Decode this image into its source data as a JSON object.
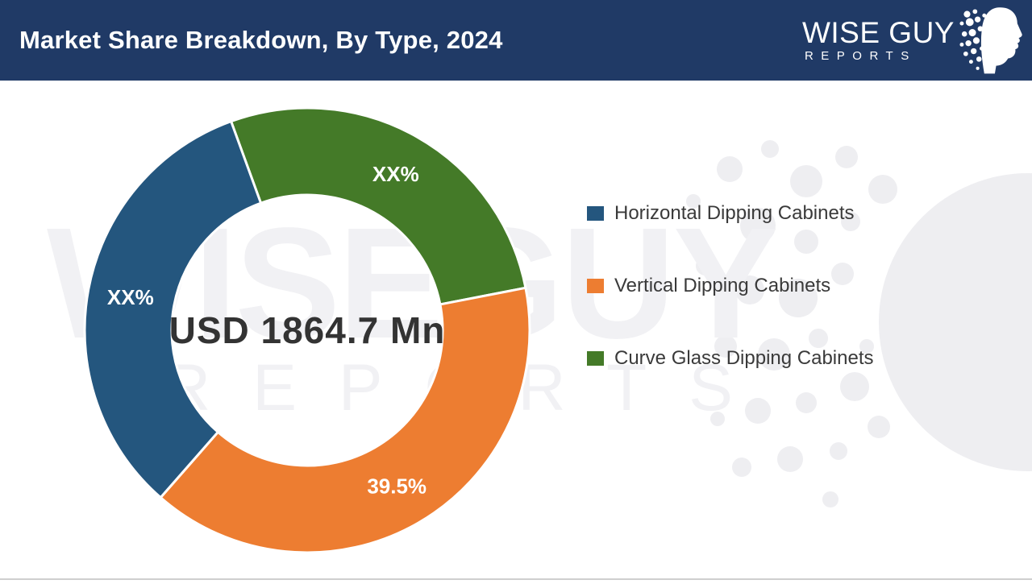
{
  "header": {
    "title": "Market Share Breakdown, By Type, 2024",
    "bg_color": "#203A66",
    "logo": {
      "line1": "WISE GUY",
      "line2": "REPORTS"
    }
  },
  "chart_data": {
    "type": "pie",
    "subtype": "donut",
    "title": "Market Share Breakdown, By Type, 2024",
    "center_label": "USD 1864.7 Mn",
    "start_angle_deg": -20,
    "legend_position": "right",
    "segments": [
      {
        "name": "Curve Glass Dipping Cabinets",
        "value_pct": 27.5,
        "data_label": "XX%",
        "color": "#447A28"
      },
      {
        "name": "Vertical Dipping Cabinets",
        "value_pct": 39.5,
        "data_label": "39.5%",
        "color": "#ED7D31"
      },
      {
        "name": "Horizontal Dipping Cabinets",
        "value_pct": 33.0,
        "data_label": "XX%",
        "color": "#24567E"
      }
    ]
  },
  "legend": {
    "items": [
      {
        "label": "Horizontal Dipping Cabinets",
        "color": "#24567E"
      },
      {
        "label": "Vertical Dipping Cabinets",
        "color": "#ED7D31"
      },
      {
        "label": "Curve Glass Dipping Cabinets",
        "color": "#447A28"
      }
    ]
  },
  "watermark": {
    "line1": "WISEGUY",
    "line2": "REPORTS"
  }
}
